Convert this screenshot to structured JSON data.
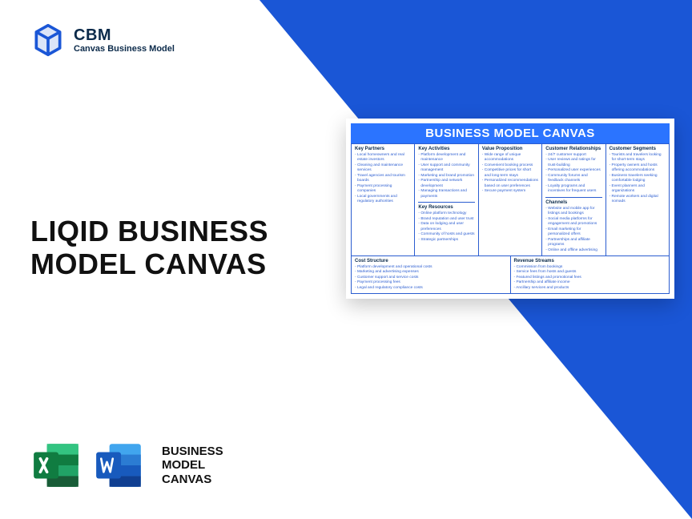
{
  "brand": {
    "title": "CBM",
    "subtitle": "Canvas Business Model",
    "logo_color": "#1a56d6"
  },
  "headline": {
    "line1": "LIQID BUSINESS",
    "line2": "MODEL CANVAS"
  },
  "file_section": {
    "label_line1": "BUSINESS",
    "label_line2": "MODEL",
    "label_line3": "CANVAS",
    "excel_color": "#107c41",
    "word_color": "#185abd"
  },
  "canvas": {
    "title": "BUSINESS MODEL CANVAS",
    "title_bg": "#2b74ff",
    "border_color": "#2b5dd0",
    "text_color": "#2b5dd0",
    "heading_color": "#0b2a4a",
    "sections": {
      "key_partners": {
        "title": "Key Partners",
        "items": [
          "Local homeowners and real estate investors",
          "Cleaning and maintenance services",
          "Travel agencies and tourism boards",
          "Payment processing companies",
          "Local governments and regulatory authorities"
        ]
      },
      "key_activities": {
        "title": "Key Activities",
        "items": [
          "Platform development and maintenance",
          "User support and community management",
          "Marketing and brand promotion",
          "Partnership and network development",
          "Managing transactions and payments"
        ]
      },
      "key_resources": {
        "title": "Key Resources",
        "items": [
          "Online platform technology",
          "Brand reputation and user trust",
          "Data on lodging and user preferences",
          "Community of hosts and guests",
          "Strategic partnerships"
        ]
      },
      "value_proposition": {
        "title": "Value Proposition",
        "items": [
          "Wide range of unique accommodations",
          "Convenient booking process",
          "Competitive prices for short and long-term stays",
          "Personalized recommendations based on user preferences",
          "Secure payment system"
        ]
      },
      "customer_relationships": {
        "title": "Customer Relationships",
        "items": [
          "24/7 customer support",
          "User reviews and ratings for trust-building",
          "Personalized user experiences",
          "Community forums and feedback channels",
          "Loyalty programs and incentives for frequent users"
        ]
      },
      "channels": {
        "title": "Channels",
        "items": [
          "Website and mobile app for listings and bookings",
          "Social media platforms for engagement and promotions",
          "Email marketing for personalized offers",
          "Partnerships and affiliate programs",
          "Online and offline advertising"
        ]
      },
      "customer_segments": {
        "title": "Customer Segments",
        "items": [
          "Tourists and travelers looking for short-term stays",
          "Property owners and hosts offering accommodations",
          "Business travelers seeking comfortable lodging",
          "Event planners and organizations",
          "Remote workers and digital nomads"
        ]
      },
      "cost_structure": {
        "title": "Cost Structure",
        "items": [
          "Platform development and operational costs",
          "Marketing and advertising expenses",
          "Customer support and service costs",
          "Payment processing fees",
          "Legal and regulatory compliance costs"
        ]
      },
      "revenue_streams": {
        "title": "Revenue Streams",
        "items": [
          "Commission from bookings",
          "Service fees from hosts and guests",
          "Featured listings and promotional fees",
          "Partnership and affiliate income",
          "Ancillary services and products"
        ]
      }
    }
  },
  "colors": {
    "triangle": "#1a56d6",
    "background": "#ffffff"
  }
}
